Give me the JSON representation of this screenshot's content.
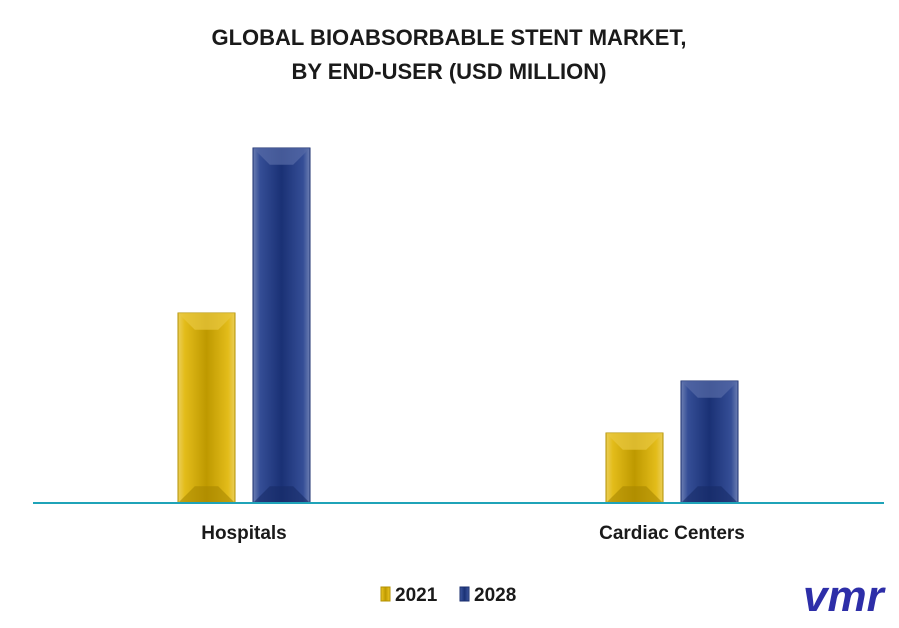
{
  "chart_data": {
    "type": "bar",
    "title": [
      "GLOBAL BIOABSORBABLE STENT MARKET,",
      "BY END-USER (USD MILLION)"
    ],
    "categories": [
      "Hospitals",
      "Cardiac Centers"
    ],
    "series": [
      {
        "name": "2021",
        "values": [
          190,
          70
        ],
        "color": "#e0b400"
      },
      {
        "name": "2028",
        "values": [
          355,
          122
        ],
        "color": "#1f3a8a"
      }
    ],
    "ylim": [
      0,
      400
    ],
    "grid": false,
    "axis_line_color": "#1fa3b8",
    "legend_position": "bottom-center"
  },
  "logo": {
    "text": "vmr",
    "color": "#2d2ea8",
    "icon": "vmr-logo"
  }
}
